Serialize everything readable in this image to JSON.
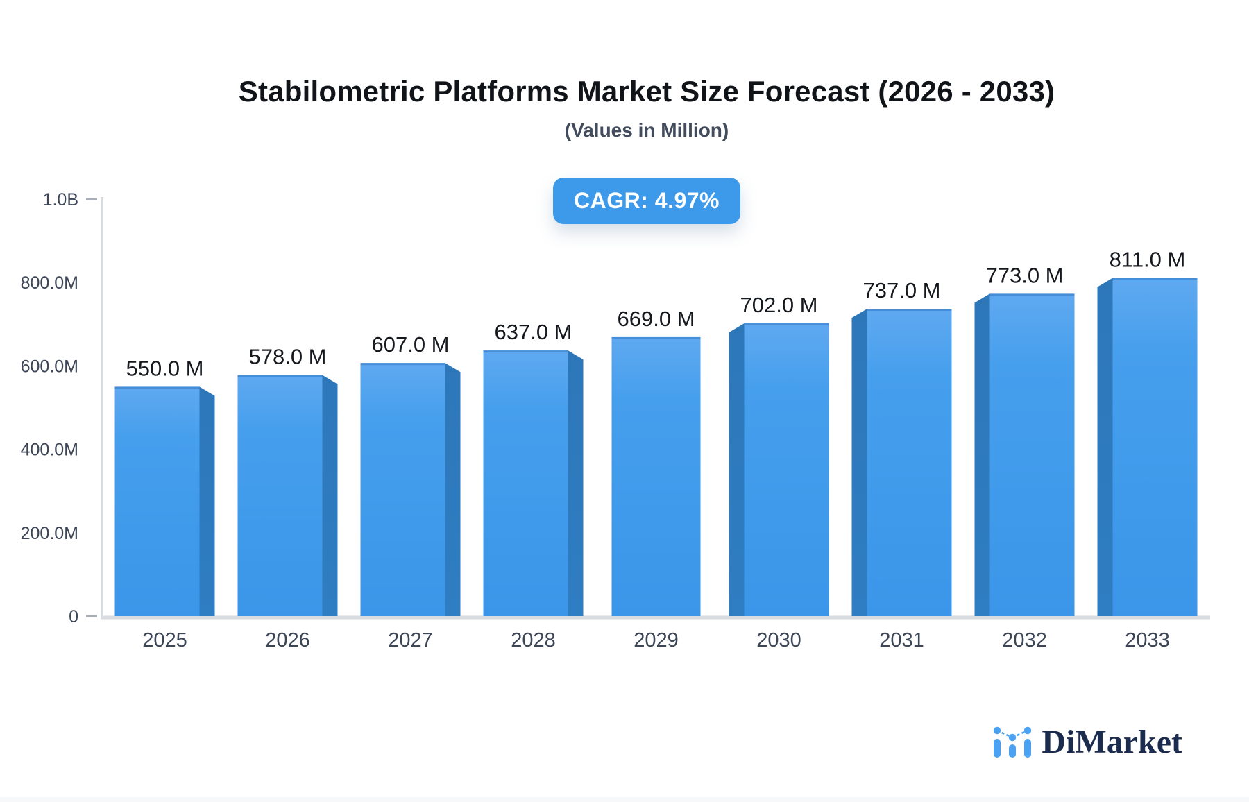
{
  "chart": {
    "title": "Stabilometric Platforms Market Size Forecast (2026 - 2033)",
    "subtitle": "(Values in Million)",
    "cagr_badge": "CAGR: 4.97%"
  },
  "chart_data": {
    "type": "bar",
    "style": "pseudo-3d-bars",
    "title": "Stabilometric Platforms Market Size Forecast (2026 - 2033)",
    "subtitle": "(Values in Million)",
    "annotation": "CAGR: 4.97%",
    "categories": [
      "2025",
      "2026",
      "2027",
      "2028",
      "2029",
      "2030",
      "2031",
      "2032",
      "2033"
    ],
    "values": [
      550,
      578,
      607,
      637,
      669,
      702,
      737,
      773,
      811
    ],
    "value_labels": [
      "550.0 M",
      "578.0 M",
      "607.0 M",
      "637.0 M",
      "669.0 M",
      "702.0 M",
      "737.0 M",
      "773.0 M",
      "811.0 M"
    ],
    "ylim": [
      0,
      1000
    ],
    "y_ticks": [
      {
        "value": 0,
        "label": "0",
        "dash": true
      },
      {
        "value": 200,
        "label": "200.0M",
        "dash": false
      },
      {
        "value": 400,
        "label": "400.0M",
        "dash": false
      },
      {
        "value": 600,
        "label": "600.0M",
        "dash": false
      },
      {
        "value": 800,
        "label": "800.0M",
        "dash": false
      },
      {
        "value": 1000,
        "label": "1.0B",
        "dash": true
      }
    ],
    "grid": false,
    "legend": false,
    "colors": {
      "bar_face_top": "#5FA9F0",
      "bar_face_bottom": "#3B96E9",
      "bar_side": "#2F7DC2",
      "bar_top_edge": "#3E86CF",
      "axis": "#D7DADF",
      "tick_text": "#3C4657",
      "value_text": "#15181D",
      "badge_bg": "#3D9AEB",
      "badge_text": "#FFFFFF"
    }
  },
  "branding": {
    "logo_text": "DiMarket",
    "logo_color": "#1C2C4E",
    "logo_icon": "mini-bar-chart-icon",
    "logo_icon_color": "#4BA2F2"
  }
}
